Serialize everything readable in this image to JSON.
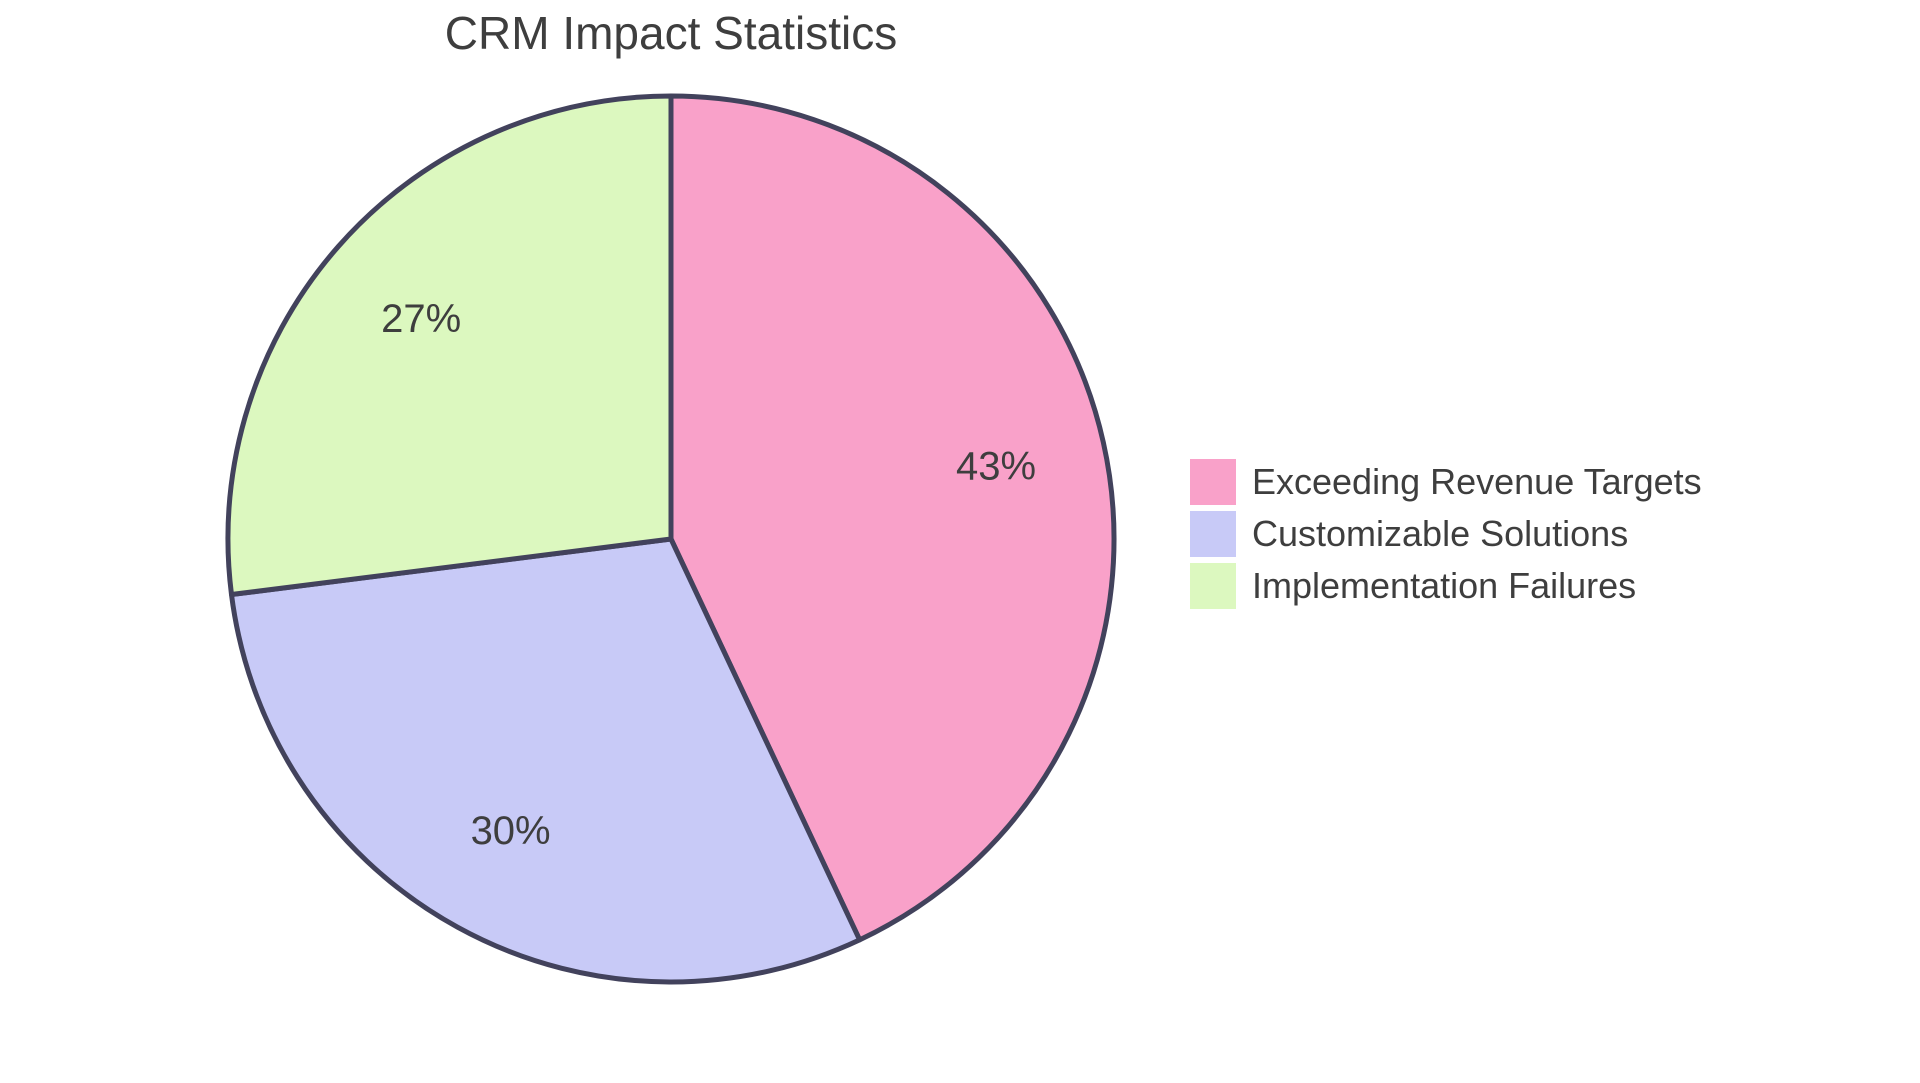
{
  "chart_data": {
    "type": "pie",
    "title": "CRM Impact Statistics",
    "categories": [
      "Exceeding Revenue Targets",
      "Customizable Solutions",
      "Implementation Failures"
    ],
    "values": [
      43,
      30,
      27
    ],
    "slice_labels": [
      "43%",
      "30%",
      "27%"
    ],
    "colors": [
      "#F9A1C9",
      "#C8CAF7",
      "#DCF8BF"
    ],
    "border_color": "#42425C",
    "text_color": "#3E3E3E",
    "legend_position": "right",
    "start_angle_deg": 0,
    "direction": "clockwise"
  }
}
